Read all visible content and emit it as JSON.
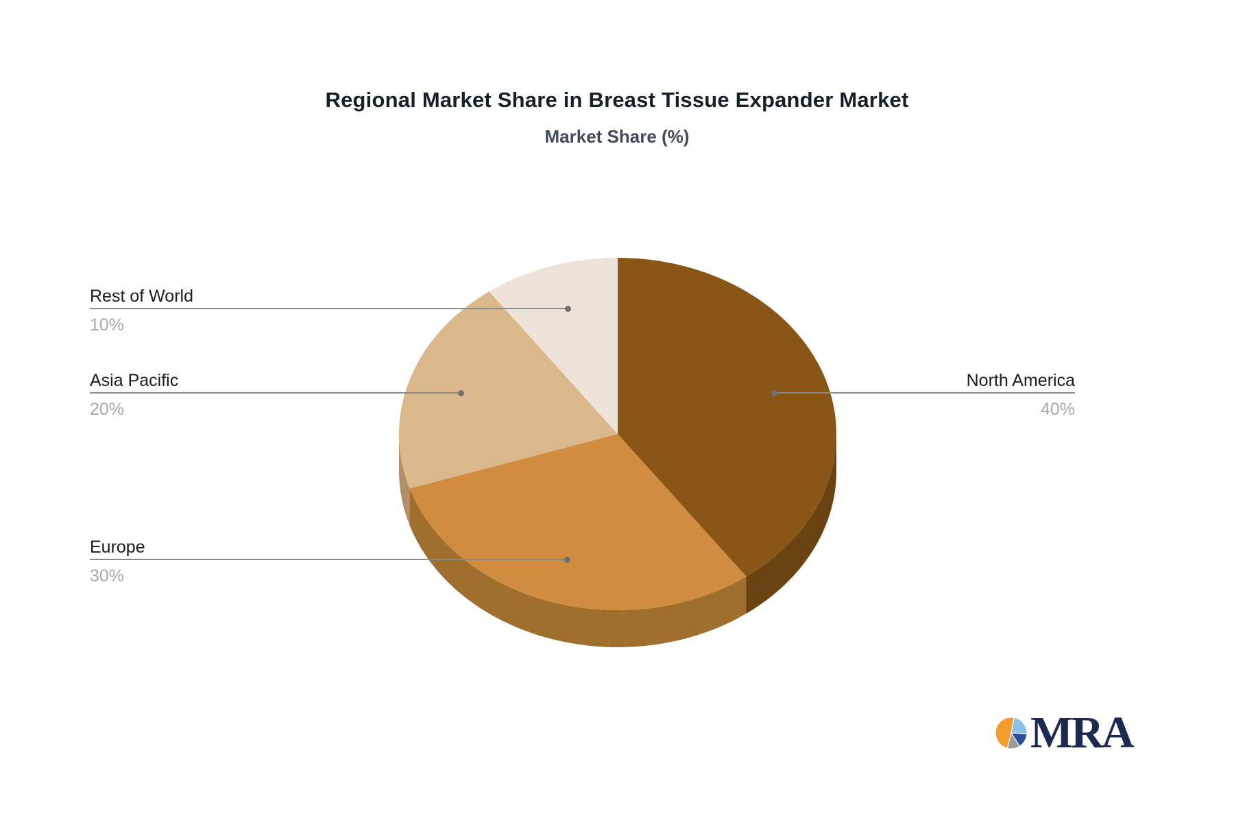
{
  "title": "Regional Market Share in Breast Tissue Expander Market",
  "subtitle": "Market Share (%)",
  "chart_data": {
    "type": "pie",
    "title": "Regional Market Share in Breast Tissue Expander Market",
    "subtitle": "Market Share (%)",
    "unit": "%",
    "categories": [
      "North America",
      "Europe",
      "Asia Pacific",
      "Rest of World"
    ],
    "values": [
      40,
      30,
      20,
      10
    ],
    "start_angle": "12-oclock",
    "direction": "clockwise",
    "style": "3d-pie",
    "legend": "none",
    "label_layout": "callout labels with leader lines and dots",
    "colors": [
      "#8A5617",
      "#D08D3F",
      "#DBB88C",
      "#EDE3D8"
    ],
    "side_colors": [
      "#6B4313",
      "#A06F2E",
      "#B28F67",
      "#C9BBA9"
    ]
  },
  "callouts": {
    "rest_of_world": {
      "label": "Rest of World",
      "value": "10%"
    },
    "asia_pacific": {
      "label": "Asia Pacific",
      "value": "20%"
    },
    "europe": {
      "label": "Europe",
      "value": "30%"
    },
    "north_america": {
      "label": "North America",
      "value": "40%"
    }
  },
  "leader_line_color": "#8a8a8a",
  "leader_dot_color": "#6f6f6f",
  "title_color": "#15202b",
  "subtitle_color": "#3f4c5d",
  "logo": {
    "text": "MRA",
    "text_color": "#1C2A52",
    "icon_slices": [
      {
        "name": "light-blue",
        "color": "#8AC0EA",
        "from": 0.03,
        "to": 0.26
      },
      {
        "name": "dark-blue",
        "color": "#2B4B9B",
        "from": 0.26,
        "to": 0.41
      },
      {
        "name": "gray",
        "color": "#9B9B9B",
        "from": 0.41,
        "to": 0.54
      },
      {
        "name": "orange",
        "color": "#F59D2C",
        "from": 0.54,
        "to": 1.03
      }
    ]
  }
}
